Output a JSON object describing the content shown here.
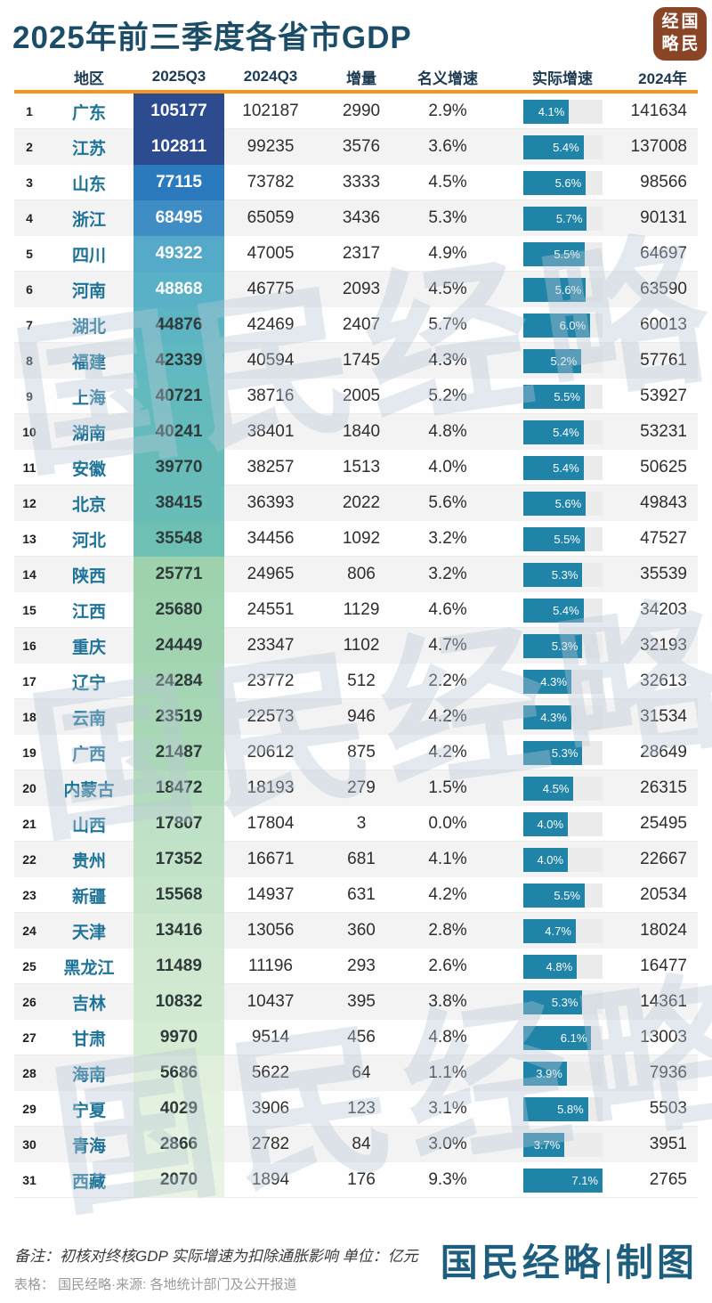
{
  "title": "2025年前三季度各省市GDP",
  "badge": {
    "text": "国民经略",
    "chars": [
      "经",
      "国",
      "略",
      "民"
    ]
  },
  "watermark": {
    "text": "国民经略"
  },
  "columns": [
    "地区",
    "2025Q3",
    "2024Q3",
    "增量",
    "名义增速",
    "实际增速",
    "2024年"
  ],
  "colors": {
    "accent_orange": "#f7941d",
    "bar_teal": "#2084a8",
    "bar_track": "#ececec",
    "title_teal": "#1b4d68",
    "region_teal": "#1e7398",
    "badge_brown": "#8a4527"
  },
  "chart_data": {
    "type": "table",
    "title": "2025年前三季度各省市GDP",
    "unit": "亿元",
    "bar_column": "实际增速",
    "bar_max": 7.1,
    "columns": [
      "地区",
      "2025Q3",
      "2024Q3",
      "增量",
      "名义增速",
      "实际增速",
      "2024年"
    ],
    "rows": [
      {
        "rank": 1,
        "region": "广东",
        "q3_2025": "105177",
        "q3_2024": "102187",
        "delta": "2990",
        "nominal": "2.9%",
        "real": 4.1,
        "y2024": "141634",
        "cell_bg": "#2c4c8f",
        "cell_fg": "#ffffff"
      },
      {
        "rank": 2,
        "region": "江苏",
        "q3_2025": "102811",
        "q3_2024": "99235",
        "delta": "3576",
        "nominal": "3.6%",
        "real": 5.4,
        "y2024": "137008",
        "cell_bg": "#2c4c8f",
        "cell_fg": "#ffffff"
      },
      {
        "rank": 3,
        "region": "山东",
        "q3_2025": "77115",
        "q3_2024": "73782",
        "delta": "3333",
        "nominal": "4.5%",
        "real": 5.6,
        "y2024": "98566",
        "cell_bg": "#2b7abe",
        "cell_fg": "#ffffff"
      },
      {
        "rank": 4,
        "region": "浙江",
        "q3_2025": "68495",
        "q3_2024": "65059",
        "delta": "3436",
        "nominal": "5.3%",
        "real": 5.7,
        "y2024": "90131",
        "cell_bg": "#3e8dc5",
        "cell_fg": "#ffffff"
      },
      {
        "rank": 5,
        "region": "四川",
        "q3_2025": "49322",
        "q3_2024": "47005",
        "delta": "2317",
        "nominal": "4.9%",
        "real": 5.5,
        "y2024": "64697",
        "cell_bg": "#55aaca",
        "cell_fg": "#ffffff"
      },
      {
        "rank": 6,
        "region": "河南",
        "q3_2025": "48868",
        "q3_2024": "46775",
        "delta": "2093",
        "nominal": "4.5%",
        "real": 5.6,
        "y2024": "63590",
        "cell_bg": "#59b1c7",
        "cell_fg": "#ffffff"
      },
      {
        "rank": 7,
        "region": "湖北",
        "q3_2025": "44876",
        "q3_2024": "42469",
        "delta": "2407",
        "nominal": "5.7%",
        "real": 6.0,
        "y2024": "60013",
        "cell_bg": "#5db5c3",
        "cell_fg": "#2f3b3b"
      },
      {
        "rank": 8,
        "region": "福建",
        "q3_2025": "42339",
        "q3_2024": "40594",
        "delta": "1745",
        "nominal": "4.3%",
        "real": 5.2,
        "y2024": "57761",
        "cell_bg": "#60b8c0",
        "cell_fg": "#2f3b3b"
      },
      {
        "rank": 9,
        "region": "上海",
        "q3_2025": "40721",
        "q3_2024": "38716",
        "delta": "2005",
        "nominal": "5.2%",
        "real": 5.5,
        "y2024": "53927",
        "cell_bg": "#63babd",
        "cell_fg": "#2f3b3b"
      },
      {
        "rank": 10,
        "region": "湖南",
        "q3_2025": "40241",
        "q3_2024": "38401",
        "delta": "1840",
        "nominal": "4.8%",
        "real": 5.4,
        "y2024": "53231",
        "cell_bg": "#65bbbb",
        "cell_fg": "#2f3b3b"
      },
      {
        "rank": 11,
        "region": "安徽",
        "q3_2025": "39770",
        "q3_2024": "38257",
        "delta": "1513",
        "nominal": "4.0%",
        "real": 5.4,
        "y2024": "50625",
        "cell_bg": "#67bcba",
        "cell_fg": "#2f3b3b"
      },
      {
        "rank": 12,
        "region": "北京",
        "q3_2025": "38415",
        "q3_2024": "36393",
        "delta": "2022",
        "nominal": "5.6%",
        "real": 5.6,
        "y2024": "49843",
        "cell_bg": "#69bdb8",
        "cell_fg": "#2f3b3b"
      },
      {
        "rank": 13,
        "region": "河北",
        "q3_2025": "35548",
        "q3_2024": "34456",
        "delta": "1092",
        "nominal": "3.2%",
        "real": 5.5,
        "y2024": "47527",
        "cell_bg": "#6ec0b5",
        "cell_fg": "#2f3b3b"
      },
      {
        "rank": 14,
        "region": "陕西",
        "q3_2025": "25771",
        "q3_2024": "24965",
        "delta": "806",
        "nominal": "3.2%",
        "real": 5.3,
        "y2024": "35539",
        "cell_bg": "#9dd2ad",
        "cell_fg": "#2f3b3b"
      },
      {
        "rank": 15,
        "region": "江西",
        "q3_2025": "25680",
        "q3_2024": "24551",
        "delta": "1129",
        "nominal": "4.6%",
        "real": 5.4,
        "y2024": "34203",
        "cell_bg": "#a0d3af",
        "cell_fg": "#2f3b3b"
      },
      {
        "rank": 16,
        "region": "重庆",
        "q3_2025": "24449",
        "q3_2024": "23347",
        "delta": "1102",
        "nominal": "4.7%",
        "real": 5.3,
        "y2024": "32193",
        "cell_bg": "#a2d4b1",
        "cell_fg": "#2f3b3b"
      },
      {
        "rank": 17,
        "region": "辽宁",
        "q3_2025": "24284",
        "q3_2024": "23772",
        "delta": "512",
        "nominal": "2.2%",
        "real": 4.3,
        "y2024": "32613",
        "cell_bg": "#a5d6b3",
        "cell_fg": "#2f3b3b"
      },
      {
        "rank": 18,
        "region": "云南",
        "q3_2025": "23519",
        "q3_2024": "22573",
        "delta": "946",
        "nominal": "4.2%",
        "real": 4.3,
        "y2024": "31534",
        "cell_bg": "#a7d7b5",
        "cell_fg": "#2f3b3b"
      },
      {
        "rank": 19,
        "region": "广西",
        "q3_2025": "21487",
        "q3_2024": "20612",
        "delta": "875",
        "nominal": "4.2%",
        "real": 5.3,
        "y2024": "28649",
        "cell_bg": "#aad8b7",
        "cell_fg": "#2f3b3b"
      },
      {
        "rank": 20,
        "region": "内蒙古",
        "q3_2025": "18472",
        "q3_2024": "18193",
        "delta": "279",
        "nominal": "1.5%",
        "real": 4.5,
        "y2024": "26315",
        "cell_bg": "#b3dcbd",
        "cell_fg": "#2f3b3b"
      },
      {
        "rank": 21,
        "region": "山西",
        "q3_2025": "17807",
        "q3_2024": "17804",
        "delta": "3",
        "nominal": "0.0%",
        "real": 4.0,
        "y2024": "25495",
        "cell_bg": "#bfe1c5",
        "cell_fg": "#2f3b3b"
      },
      {
        "rank": 22,
        "region": "贵州",
        "q3_2025": "17352",
        "q3_2024": "16671",
        "delta": "681",
        "nominal": "4.1%",
        "real": 4.0,
        "y2024": "22667",
        "cell_bg": "#c2e2c7",
        "cell_fg": "#2f3b3b"
      },
      {
        "rank": 23,
        "region": "新疆",
        "q3_2025": "15568",
        "q3_2024": "14937",
        "delta": "631",
        "nominal": "4.2%",
        "real": 5.5,
        "y2024": "20534",
        "cell_bg": "#c5e4c9",
        "cell_fg": "#2f3b3b"
      },
      {
        "rank": 24,
        "region": "天津",
        "q3_2025": "13416",
        "q3_2024": "13056",
        "delta": "360",
        "nominal": "2.8%",
        "real": 4.7,
        "y2024": "18024",
        "cell_bg": "#cce7cd",
        "cell_fg": "#2f3b3b"
      },
      {
        "rank": 25,
        "region": "黑龙江",
        "q3_2025": "11489",
        "q3_2024": "11196",
        "delta": "293",
        "nominal": "2.6%",
        "real": 4.8,
        "y2024": "16477",
        "cell_bg": "#cfe8cf",
        "cell_fg": "#2f3b3b"
      },
      {
        "rank": 26,
        "region": "吉林",
        "q3_2025": "10832",
        "q3_2024": "10437",
        "delta": "395",
        "nominal": "3.8%",
        "real": 5.3,
        "y2024": "14361",
        "cell_bg": "#d2e9d1",
        "cell_fg": "#2f3b3b"
      },
      {
        "rank": 27,
        "region": "甘肃",
        "q3_2025": "9970",
        "q3_2024": "9514",
        "delta": "456",
        "nominal": "4.8%",
        "real": 6.1,
        "y2024": "13003",
        "cell_bg": "#d5ebd4",
        "cell_fg": "#2f3b3b"
      },
      {
        "rank": 28,
        "region": "海南",
        "q3_2025": "5686",
        "q3_2024": "5622",
        "delta": "64",
        "nominal": "1.1%",
        "real": 3.9,
        "y2024": "7936",
        "cell_bg": "#e0efdc",
        "cell_fg": "#2f3b3b"
      },
      {
        "rank": 29,
        "region": "宁夏",
        "q3_2025": "4029",
        "q3_2024": "3906",
        "delta": "123",
        "nominal": "3.1%",
        "real": 5.8,
        "y2024": "5503",
        "cell_bg": "#e3f1df",
        "cell_fg": "#2f3b3b"
      },
      {
        "rank": 30,
        "region": "青海",
        "q3_2025": "2866",
        "q3_2024": "2782",
        "delta": "84",
        "nominal": "3.0%",
        "real": 3.7,
        "y2024": "3951",
        "cell_bg": "#e6f2e1",
        "cell_fg": "#2f3b3b"
      },
      {
        "rank": 31,
        "region": "西藏",
        "q3_2025": "2070",
        "q3_2024": "1894",
        "delta": "176",
        "nominal": "9.3%",
        "real": 7.1,
        "y2024": "2765",
        "cell_bg": "#eaf4e5",
        "cell_fg": "#2f3b3b"
      }
    ]
  },
  "footer": {
    "note1": "备注：初核对终核GDP 实际增速为扣除通胀影响 单位：亿元",
    "note2": "表格： 国民经略·来源: 各地统计部门及公开报道",
    "logo": "国民经略|制图"
  }
}
